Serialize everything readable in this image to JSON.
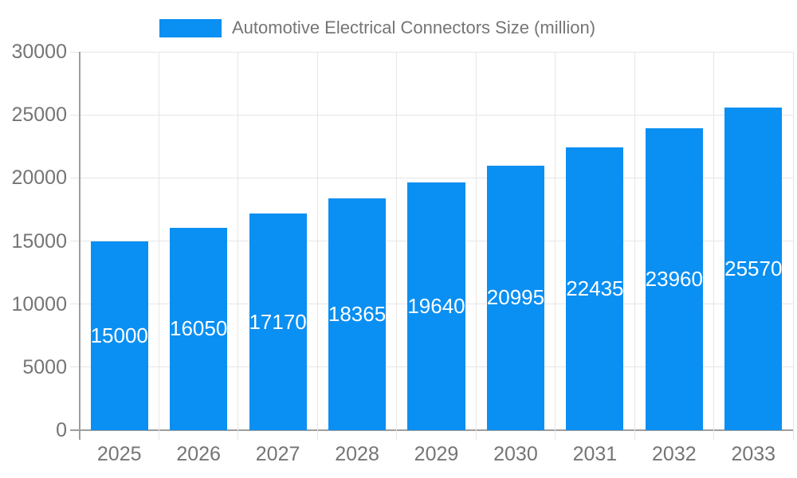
{
  "chart_data": {
    "type": "bar",
    "title": "Automotive Electrical Connectors Size (million)",
    "categories": [
      "2025",
      "2026",
      "2027",
      "2028",
      "2029",
      "2030",
      "2031",
      "2032",
      "2033"
    ],
    "values": [
      15000,
      16050,
      17170,
      18365,
      19640,
      20995,
      22435,
      23960,
      25570
    ],
    "series": [
      {
        "name": "Automotive Electrical Connectors Size (million)",
        "values": [
          15000,
          16050,
          17170,
          18365,
          19640,
          20995,
          22435,
          23960,
          25570
        ]
      }
    ],
    "xlabel": "",
    "ylabel": "",
    "ylim": [
      0,
      30000
    ],
    "yticks": [
      0,
      5000,
      10000,
      15000,
      20000,
      25000,
      30000
    ],
    "grid": true,
    "legend_position": "top",
    "value_labels": "inside-center",
    "colors": {
      "bar": "#0a8ff2",
      "bar_value_text": "#ffffff",
      "tick_label": "#757575",
      "legend_text": "#757575",
      "gridline": "#e6e6e6",
      "axis": "#9e9e9e",
      "background": "#ffffff"
    }
  }
}
